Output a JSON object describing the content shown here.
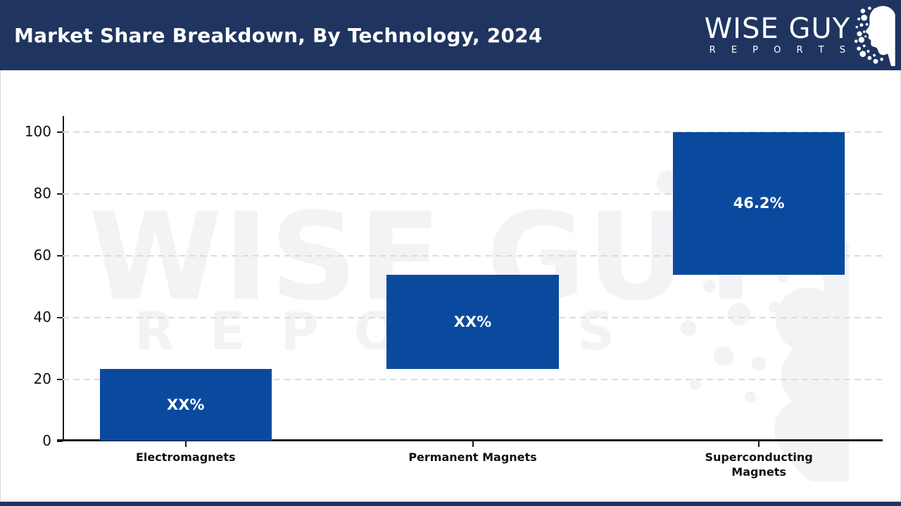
{
  "header": {
    "title": "Market Share Breakdown, By Technology, 2024",
    "logo": {
      "line1": "WISE GUY",
      "line2": "R E P O R T S"
    }
  },
  "watermark": {
    "line1": "WISE GUY",
    "line2": "REPORTS"
  },
  "chart_data": {
    "type": "bar",
    "subtype": "waterfall-stacked-percentage",
    "title": "Market Share Breakdown, By Technology, 2024",
    "categories": [
      "Electromagnets",
      "Permanent Magnets",
      "Superconducting Magnets"
    ],
    "segments": [
      {
        "category": "Electromagnets",
        "start": 0,
        "end": 23.3,
        "value": 23.3,
        "label": "XX%"
      },
      {
        "category": "Permanent Magnets",
        "start": 23.3,
        "end": 53.8,
        "value": 30.5,
        "label": "XX%"
      },
      {
        "category": "Superconducting Magnets",
        "start": 53.8,
        "end": 100,
        "value": 46.2,
        "label": "46.2%"
      }
    ],
    "yticks": [
      0,
      20,
      40,
      60,
      80,
      100
    ],
    "ylim": [
      0,
      100
    ],
    "xlabel": "",
    "ylabel": "",
    "grid": "horizontal-dashed",
    "legend": "none"
  },
  "colors": {
    "header_bg": "#1f3560",
    "bar": "#0a4a9e",
    "bar_label": "#ffffff",
    "gridline": "#dcdcdc",
    "axis": "#1a1a1a",
    "watermark": "#f2f3f5"
  }
}
